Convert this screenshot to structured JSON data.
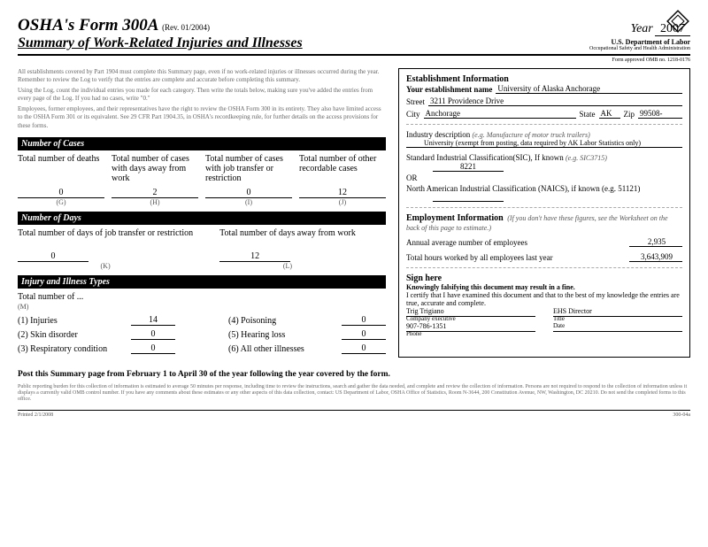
{
  "header": {
    "formTitle": "OSHA's Form 300A",
    "rev": "(Rev. 01/2004)",
    "subtitle": "Summary of Work-Related Injuries and Illnesses",
    "yearLabel": "Year",
    "year": "2007",
    "dol": "U.S. Department of Labor",
    "dol2": "Occupational Safety and Health Administration",
    "omb": "Form approved OMB no. 1218-0176"
  },
  "intro": {
    "p1": "All establishments covered by Part 1904 must complete this Summary page, even if no work-related injuries or illnesses occurred during the year. Remember to review the Log to verify that the entries are complete and accurate before completing this summary.",
    "p2": "Using the Log, count the individual entries you made for each category. Then write the totals below, making sure you've added the entries from every page of the Log. If you had no cases, write \"0.\"",
    "p3": "Employees, former employees, and their representatives have the right to review the OSHA Form 300 in its entirety. They also have limited access to the OSHA Form 301 or its equivalent. See 29 CFR Part 1904.35, in OSHA's recordkeeping rule, for further details on the access provisions for these forms."
  },
  "cases": {
    "header": "Number of Cases",
    "cols": [
      {
        "label": "Total number of deaths",
        "val": "0",
        "key": "(G)"
      },
      {
        "label": "Total number of cases with days away from work",
        "val": "2",
        "key": "(H)"
      },
      {
        "label": "Total number of cases with job transfer or restriction",
        "val": "0",
        "key": "(I)"
      },
      {
        "label": "Total number of other recordable cases",
        "val": "12",
        "key": "(J)"
      }
    ]
  },
  "days": {
    "header": "Number of Days",
    "cols": [
      {
        "label": "Total number of days of job transfer or restriction",
        "val": "0",
        "key": "(K)"
      },
      {
        "label": "Total number of days away from work",
        "val": "12",
        "key": "(L)"
      }
    ]
  },
  "types": {
    "header": "Injury and Illness Types",
    "sub": "Total number of ...",
    "m": "(M)",
    "left": [
      {
        "label": "(1)  Injuries",
        "val": "14"
      },
      {
        "label": "(2)  Skin disorder",
        "val": "0"
      },
      {
        "label": "(3)  Respiratory condition",
        "val": "0"
      }
    ],
    "right": [
      {
        "label": "(4)  Poisoning",
        "val": "0"
      },
      {
        "label": "(5)  Hearing loss",
        "val": "0"
      },
      {
        "label": "(6)  All other illnesses",
        "val": "0"
      }
    ]
  },
  "est": {
    "h": "Establishment Information",
    "nameL": "Your establishment name",
    "name": "University of Alaska Anchorage",
    "streetL": "Street",
    "street": "3211 Providence Drive",
    "cityL": "City",
    "city": "Anchorage",
    "stateL": "State",
    "state": "AK",
    "zipL": "Zip",
    "zip": "99508-",
    "indL": "Industry description",
    "indE": "(e.g. Manufacture of motor truck trailers)",
    "ind": "University (exempt from posting, data required by AK Labor Statistics only)",
    "sicL": "Standard Industrial Classification(SIC), If known",
    "sicE": "(e.g. SIC3715)",
    "sic": "8221",
    "or": "OR",
    "naicsL": "North American Industrial Classification (NAICS), if known (e.g. 51121)",
    "naics": ""
  },
  "emp": {
    "h": "Employment Information",
    "hE": "(If you don't have these figures, see the Worksheet on the back of this page to estimate.)",
    "avgL": "Annual average number of employees",
    "avg": "2,935",
    "hrsL": "Total hours worked by all employees last year",
    "hrs": "3,643,909"
  },
  "sign": {
    "h": "Sign here",
    "warn": "Knowingly falsifying this document may result in a fine.",
    "cert": "I certify that I have examined this document and that to the best of my knowledge the entries are true, accurate and complete.",
    "name": "Trig          Trigiano",
    "nameL": "Company executive",
    "title": "EHS Director",
    "titleL": "Title",
    "phone": "907-786-1351",
    "phoneL": "Phone",
    "date": "",
    "dateL": "Date"
  },
  "post": "Post this Summary page from  February 1 to April 30 of the year following the year covered by the form.",
  "fine": "Public reporting burden for this collection of information is estimated to average 50 minutes per response, including time to review the instructions, search and gather the data needed, and complete and review the collection of information. Persons are not required to respond to the collection of information unless it displays a currently valid OMB control number. If you have any comments about these estimates or any other aspects of this data collection, contact: US Department of Labor, OSHA Office of Statistics, Room N-3644, 200 Constitution Avenue, NW, Washington, DC 20210. Do not send the completed forms to this office.",
  "footer": {
    "l": "Printed 2/1/2008",
    "r": "300-04a"
  }
}
